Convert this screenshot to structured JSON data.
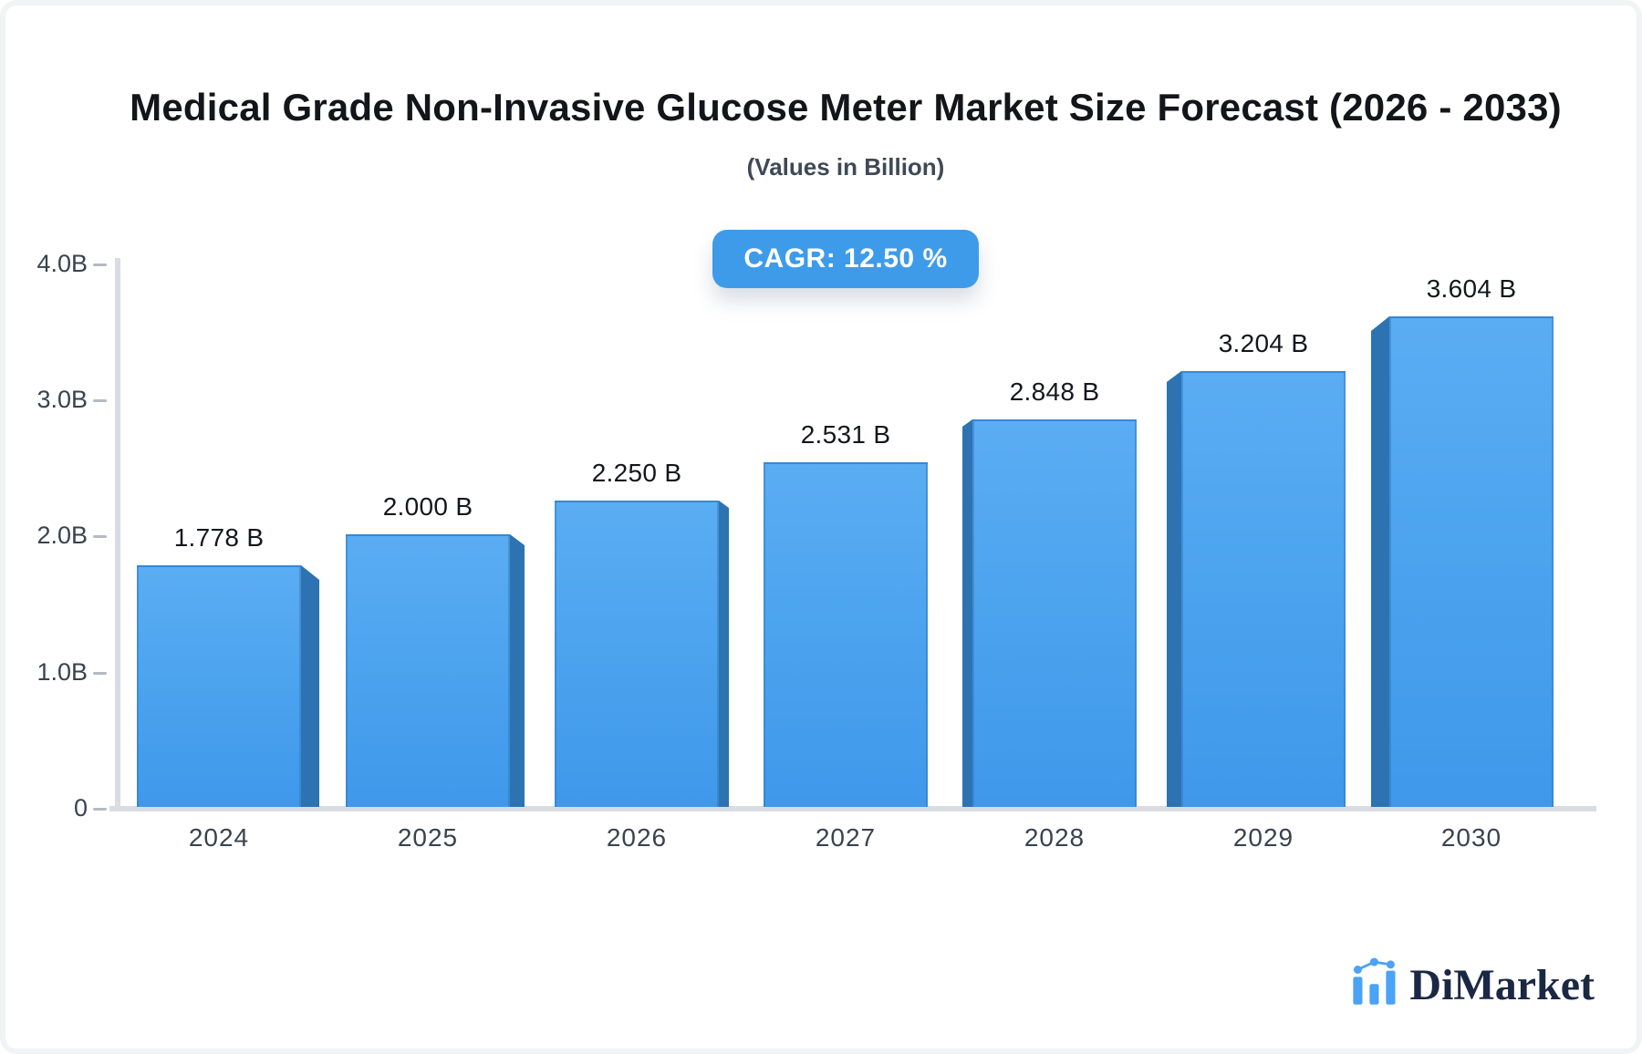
{
  "header": {
    "title": "Medical Grade Non-Invasive Glucose Meter Market Size Forecast (2026 - 2033)",
    "subtitle": "(Values in Billion)",
    "cagr_label": "CAGR: 12.50 %"
  },
  "brand": {
    "name": "DiMarket"
  },
  "colors": {
    "accent_blue": "#3e9bea",
    "bar_face_top": "#5aadf2",
    "bar_face_bottom": "#3f98ea",
    "bar_side": "#2d73b2",
    "axis_line": "#d9dce2",
    "tick_mark": "#b4bac2",
    "axis_text": "#39434f",
    "value_text": "#14171c",
    "logo_navy": "#1b2844",
    "logo_blue": "#4aa3f7"
  },
  "chart_data": {
    "type": "bar",
    "title": "Medical Grade Non-Invasive Glucose Meter Market Size Forecast (2026 - 2033)",
    "subtitle": "(Values in Billion)",
    "cagr": "12.50 %",
    "categories": [
      "2024",
      "2025",
      "2026",
      "2027",
      "2028",
      "2029",
      "2030"
    ],
    "values": [
      1.778,
      2.0,
      2.25,
      2.531,
      2.848,
      3.204,
      3.604
    ],
    "value_labels": [
      "1.778 B",
      "2.000 B",
      "2.250 B",
      "2.531 B",
      "2.848 B",
      "3.204 B",
      "3.604 B"
    ],
    "xlabel": "",
    "ylabel": "",
    "ylim": [
      0,
      4.0
    ],
    "y_ticks": [
      {
        "value": 0,
        "label": "0"
      },
      {
        "value": 1,
        "label": "1.0B"
      },
      {
        "value": 2,
        "label": "2.0B"
      },
      {
        "value": 3,
        "label": "3.0B"
      },
      {
        "value": 4,
        "label": "4.0B"
      }
    ],
    "grid": false,
    "legend": "none",
    "style": "3d-perspective-bars"
  }
}
